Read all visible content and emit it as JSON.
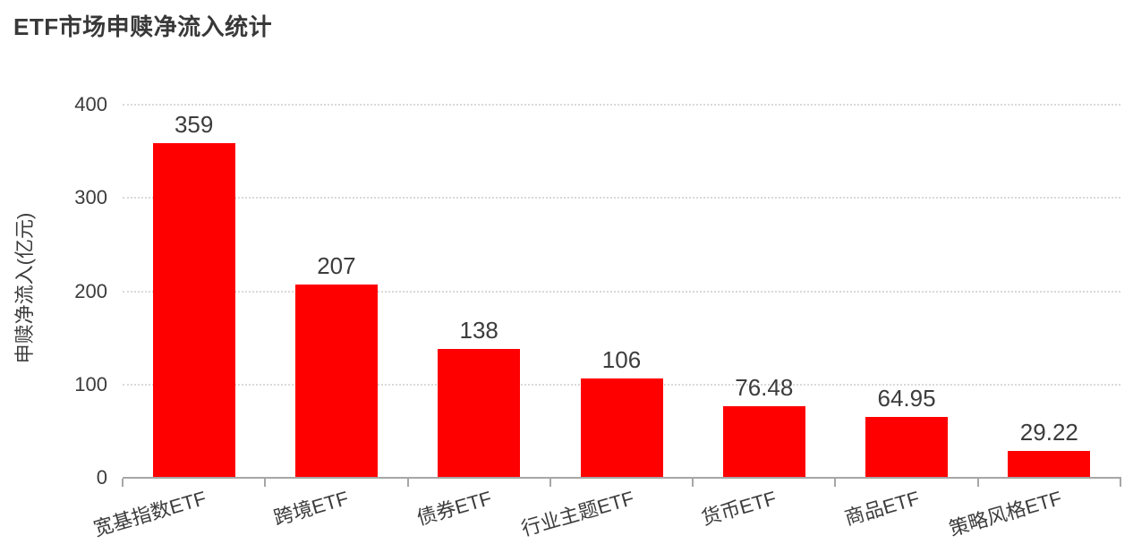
{
  "chart_data": {
    "type": "bar",
    "title": "ETF市场申赎净流入统计",
    "categories": [
      "宽基指数ETF",
      "跨境ETF",
      "债券ETF",
      "行业主题ETF",
      "货币ETF",
      "商品ETF",
      "策略风格ETF"
    ],
    "values": [
      359,
      207,
      138,
      106,
      76.48,
      64.95,
      29.22
    ],
    "value_labels": [
      "359",
      "207",
      "138",
      "106",
      "76.48",
      "64.95",
      "29.22"
    ],
    "xlabel": "",
    "ylabel": "申赎净流入(亿元)",
    "ylim": [
      0,
      400
    ],
    "yticks": [
      0,
      100,
      200,
      300,
      400
    ],
    "legend": "none",
    "grid": "horizontal-dotted",
    "colors": {
      "bar": "#ff0000",
      "title_text": "#383838",
      "label_text": "#3c3c3c",
      "axis_line": "#a6a6a6",
      "gridline": "#d9d9d9",
      "background": "#ffffff"
    }
  }
}
